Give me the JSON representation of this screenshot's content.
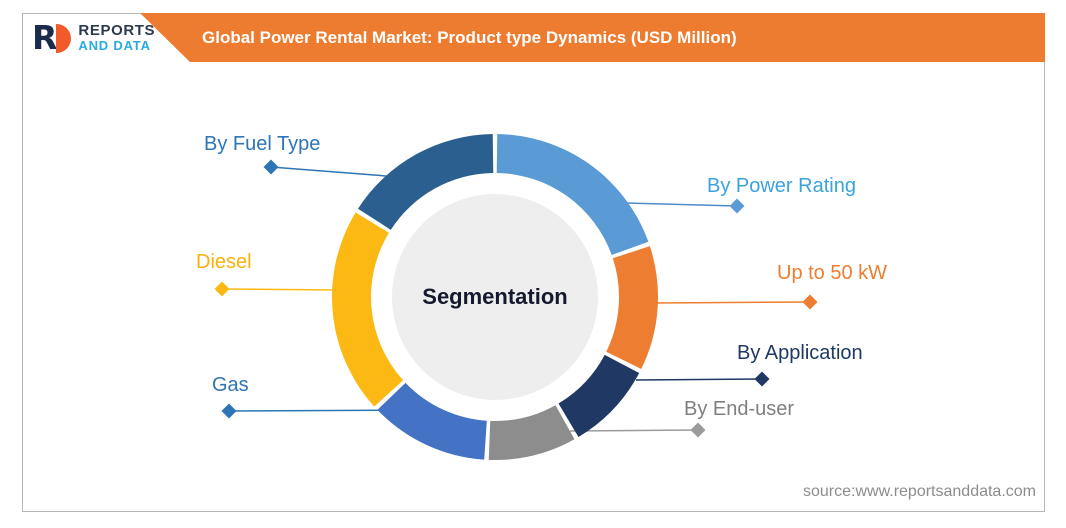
{
  "logo": {
    "mark_r": "R",
    "line1": "REPORTS",
    "line2": "AND DATA",
    "colors": {
      "mark_navy": "#1B2B4C",
      "mark_orange": "#F15A29",
      "line1_color": "#2B3A4F",
      "line2_color": "#29ABE2"
    }
  },
  "header": {
    "title": "Global Power Rental Market: Product type Dynamics (USD Million)",
    "banner_color": "#ED7C30",
    "text_color": "#FFFFFF"
  },
  "chart_data": {
    "type": "pie",
    "subtype": "donut",
    "title": "Global Power Rental Market: Product type Dynamics (USD Million)",
    "center_label": "Segmentation",
    "center_fill": "#EEEEEE",
    "separator_color": "#FFFFFF",
    "segments": [
      {
        "label": "By Power Rating",
        "color": "#5B9BD5",
        "label_color": "#3AA3DE",
        "line_color": "#4E8AC8",
        "marker_color": "#5B9BD5",
        "start_angle": 0,
        "end_angle": 71,
        "percent_of_ring": 19.7
      },
      {
        "label": "Up to 50 kW",
        "color": "#ED7D31",
        "label_color": "#ED7D31",
        "line_color": "#ED7D31",
        "marker_color": "#ED7D31",
        "start_angle": 71,
        "end_angle": 117,
        "percent_of_ring": 12.8
      },
      {
        "label": "By Application",
        "color": "#1F3864",
        "label_color": "#1F3864",
        "line_color": "#1F3864",
        "marker_color": "#1F3864",
        "start_angle": 117,
        "end_angle": 150,
        "percent_of_ring": 9.2
      },
      {
        "label": "By End-user",
        "color": "#8D8D8D",
        "label_color": "#7F7F7F",
        "line_color": "#9B9B9B",
        "marker_color": "#9B9B9B",
        "start_angle": 150,
        "end_angle": 183,
        "percent_of_ring": 9.2
      },
      {
        "label": "Gas",
        "color": "#4472C4",
        "label_color": "#2E75B6",
        "line_color": "#2E75B6",
        "marker_color": "#2E75B6",
        "start_angle": 183,
        "end_angle": 227,
        "percent_of_ring": 12.2
      },
      {
        "label": "Diesel",
        "color": "#FCB813",
        "label_color": "#F9B208",
        "line_color": "#FCB813",
        "marker_color": "#FCB813",
        "start_angle": 227,
        "end_angle": 302,
        "percent_of_ring": 20.8
      },
      {
        "label": "By Fuel Type",
        "color": "#2A5F90",
        "label_color": "#2E75B6",
        "line_color": "#2E75B6",
        "marker_color": "#2E75B6",
        "start_angle": 302,
        "end_angle": 360,
        "percent_of_ring": 16.1
      }
    ]
  },
  "footer": {
    "source": "source:www.reportsanddata.com"
  }
}
